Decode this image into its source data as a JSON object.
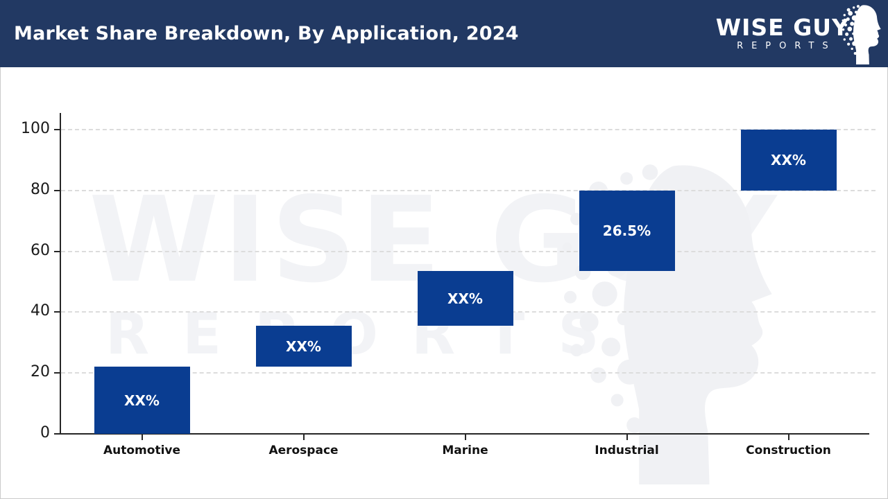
{
  "header": {
    "title": "Market Share Breakdown, By Application, 2024",
    "logo": {
      "line1": "WISE GUY",
      "line2": "REPORTS"
    }
  },
  "watermark": {
    "line1": "WISE GUY",
    "line2": "REPORTS"
  },
  "theme": {
    "header_bg": "#223963",
    "bar": "#0a3d91",
    "bar_label": "#ffffff",
    "axis": "#262626",
    "grid": "#dcdcdc",
    "text": "#1a1a1a",
    "wm": "#f2f3f6"
  },
  "chart_data": {
    "type": "bar",
    "subtype": "floating-waterfall",
    "title": "Market Share Breakdown, By Application, 2024",
    "categories": [
      "Automotive",
      "Aerospace",
      "Marine",
      "Industrial",
      "Construction"
    ],
    "segments": [
      {
        "category": "Automotive",
        "start": 0,
        "end": 22,
        "label": "XX%"
      },
      {
        "category": "Aerospace",
        "start": 22,
        "end": 35.5,
        "label": "XX%"
      },
      {
        "category": "Marine",
        "start": 35.5,
        "end": 53.5,
        "label": "XX%"
      },
      {
        "category": "Industrial",
        "start": 53.5,
        "end": 80,
        "label": "26.5%"
      },
      {
        "category": "Construction",
        "start": 80,
        "end": 100,
        "label": "XX%"
      }
    ],
    "ylim": [
      0,
      100
    ],
    "yticks": [
      0,
      20,
      40,
      60,
      80,
      100
    ],
    "xlabel": "",
    "ylabel": "",
    "grid": "horizontal-dashed",
    "legend": "none"
  }
}
